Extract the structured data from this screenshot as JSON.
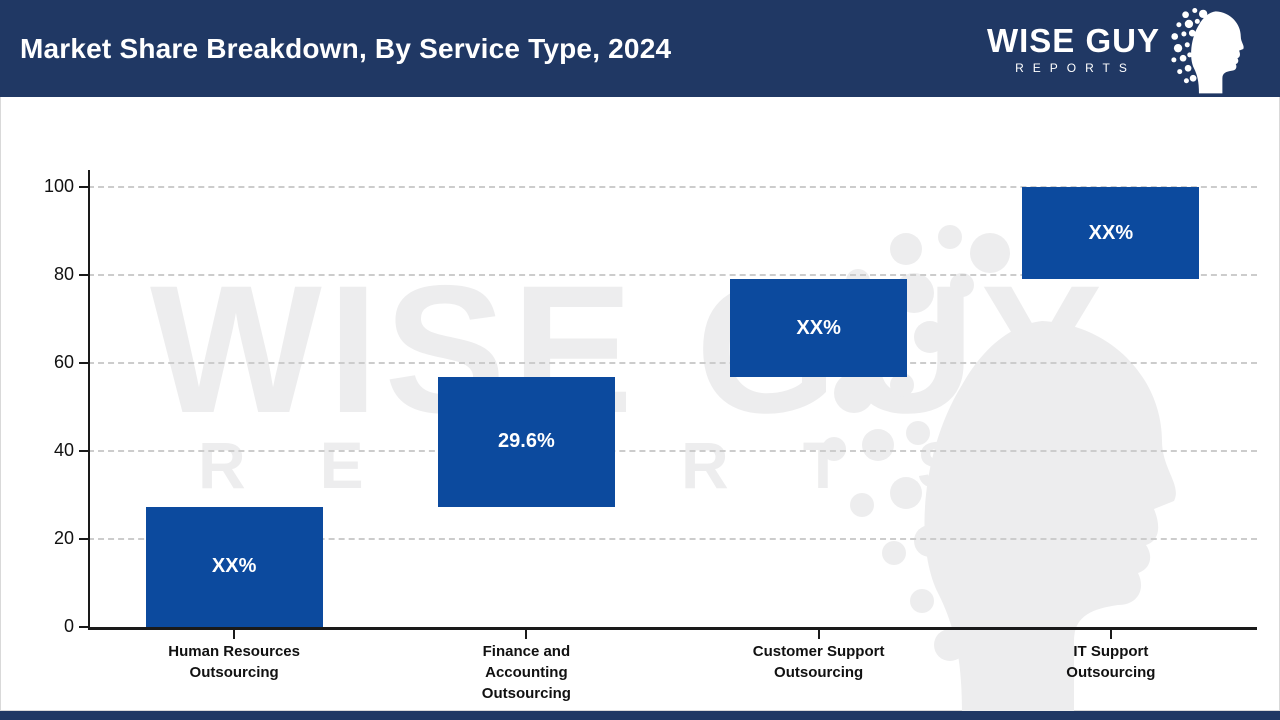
{
  "header": {
    "title": "Market Share Breakdown, By Service Type, 2024",
    "logo": {
      "brand": "WISE GUY",
      "sub": "REPORTS"
    }
  },
  "watermark": {
    "line1": "WISE GUY",
    "line2": "REPORTS"
  },
  "colors": {
    "header_bg": "#203864",
    "footer_bg": "#203864",
    "bar": "#0c4a9e",
    "bar_label": "#ffffff",
    "gridline": "#cccccc",
    "axis": "#1a1a1a",
    "watermark": "#ededee"
  },
  "chart_data": {
    "type": "bar",
    "variant": "waterfall",
    "title": "Market Share Breakdown, By Service Type, 2024",
    "xlabel": "",
    "ylabel": "",
    "ylim": [
      0,
      100
    ],
    "yticks": [
      0,
      20,
      40,
      60,
      80,
      100
    ],
    "grid": "horizontal-dashed",
    "legend": "none",
    "categories": [
      "Human Resources\nOutsourcing",
      "Finance and\nAccounting\nOutsourcing",
      "Customer Support\nOutsourcing",
      "IT Support\nOutsourcing"
    ],
    "segments": [
      {
        "category": "Human Resources Outsourcing",
        "start": 0,
        "end": 27.3,
        "label": "XX%"
      },
      {
        "category": "Finance and Accounting Outsourcing",
        "start": 27.3,
        "end": 56.9,
        "label": "29.6%"
      },
      {
        "category": "Customer Support Outsourcing",
        "start": 56.9,
        "end": 79.0,
        "label": "XX%"
      },
      {
        "category": "IT Support Outsourcing",
        "start": 79.0,
        "end": 100,
        "label": "XX%"
      }
    ]
  }
}
